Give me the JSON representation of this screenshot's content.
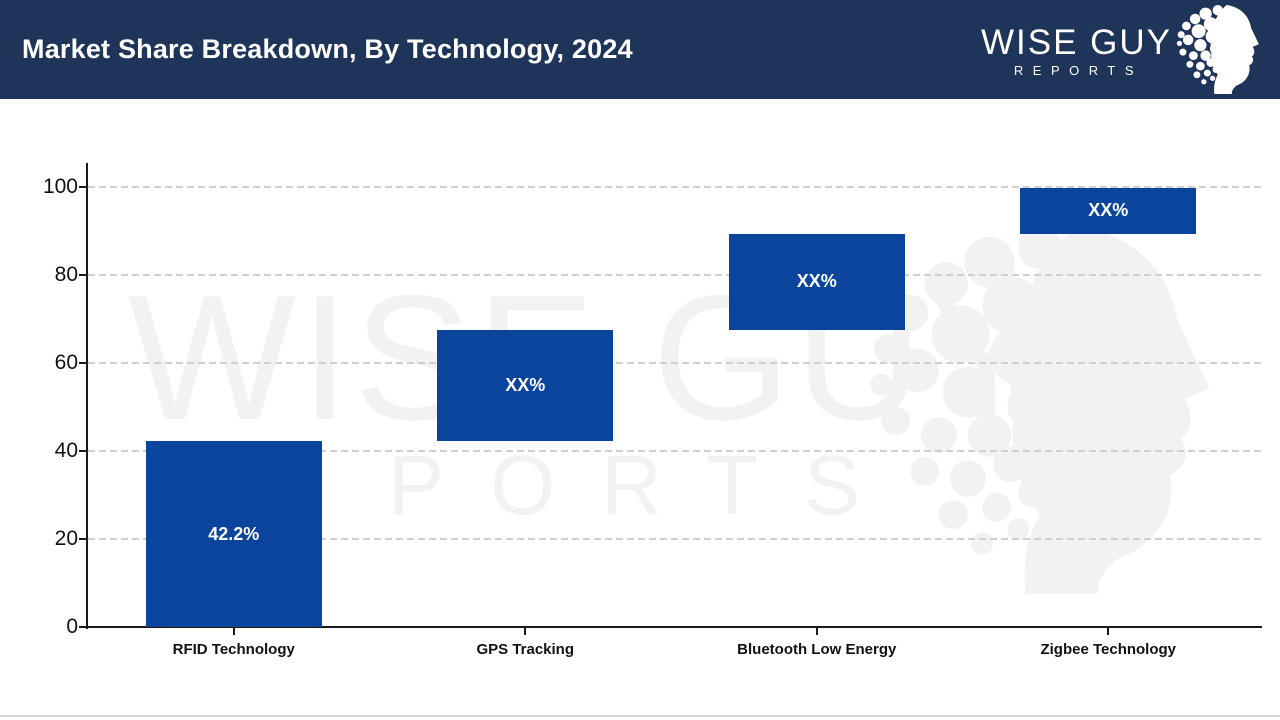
{
  "page": {
    "background": "#ffffff",
    "footer_line_color": "#d8d8d8"
  },
  "header": {
    "bg_color": "#1f3459",
    "title": "Market Share Breakdown, By Technology, 2024",
    "logo": {
      "primary": "WISE GUY",
      "secondary": "REPORTS"
    }
  },
  "watermark": {
    "primary": "WISE GUY",
    "secondary": "PORTS"
  },
  "chart_data": {
    "type": "bar",
    "subtype": "waterfall",
    "title": "Market Share Breakdown, By Technology, 2024",
    "categories": [
      "RFID Technology",
      "GPS Tracking",
      "Bluetooth Low Energy",
      "Zigbee Technology"
    ],
    "segments": [
      {
        "category": "RFID Technology",
        "start": 0,
        "end": 42.2,
        "delta": 42.2,
        "label": "42.2%"
      },
      {
        "category": "GPS Tracking",
        "start": 42.2,
        "end": 67.5,
        "delta": 25.3,
        "label": "XX%"
      },
      {
        "category": "Bluetooth Low Energy",
        "start": 67.5,
        "end": 89.4,
        "delta": 21.9,
        "label": "XX%"
      },
      {
        "category": "Zigbee Technology",
        "start": 89.4,
        "end": 99.8,
        "delta": 10.4,
        "label": "XX%"
      }
    ],
    "xlabel": "",
    "ylabel": "",
    "y_ticks": [
      0,
      20,
      40,
      60,
      80,
      100
    ],
    "ylim": [
      0,
      105
    ],
    "grid": {
      "horizontal": true,
      "style": "dashed",
      "color": "#cccccc"
    },
    "legend": "none",
    "bar_color": "#0a449c",
    "value_label_color": "#ffffff",
    "axis_color": "#1a1a1a"
  }
}
